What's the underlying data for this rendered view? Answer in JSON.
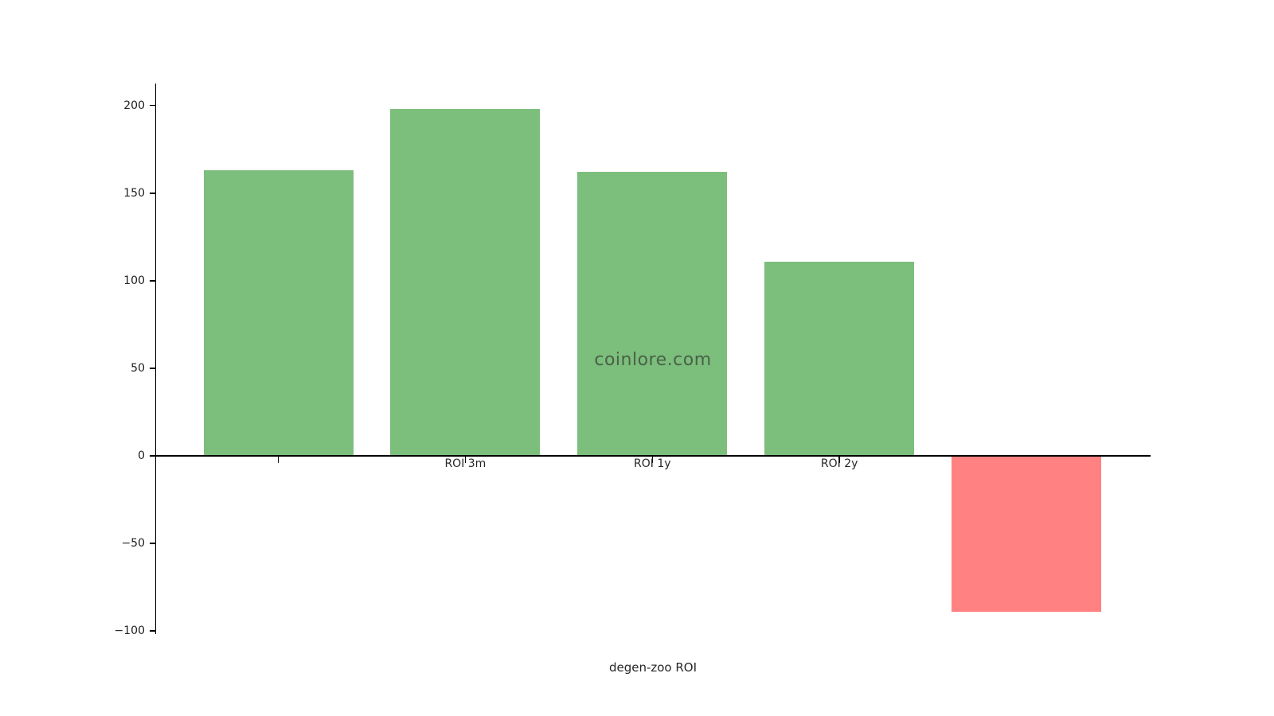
{
  "watermark": "coinlore.com",
  "chart_data": {
    "type": "bar",
    "title": "",
    "xlabel": "degen-zoo ROI",
    "ylabel": "",
    "categories": [
      "",
      "ROI 3m",
      "ROI 1y",
      "ROI 2y",
      ""
    ],
    "values": [
      163,
      198,
      162,
      111,
      -89
    ],
    "positive_color": "#7cbe7c",
    "negative_color": "#ff8181",
    "y_ticks": [
      200,
      150,
      100,
      50,
      0,
      -50,
      -100
    ],
    "ylim": [
      -102,
      213
    ],
    "grid": false,
    "legend": false,
    "axis_color": "#000000",
    "tick_text_color": "#262626"
  }
}
